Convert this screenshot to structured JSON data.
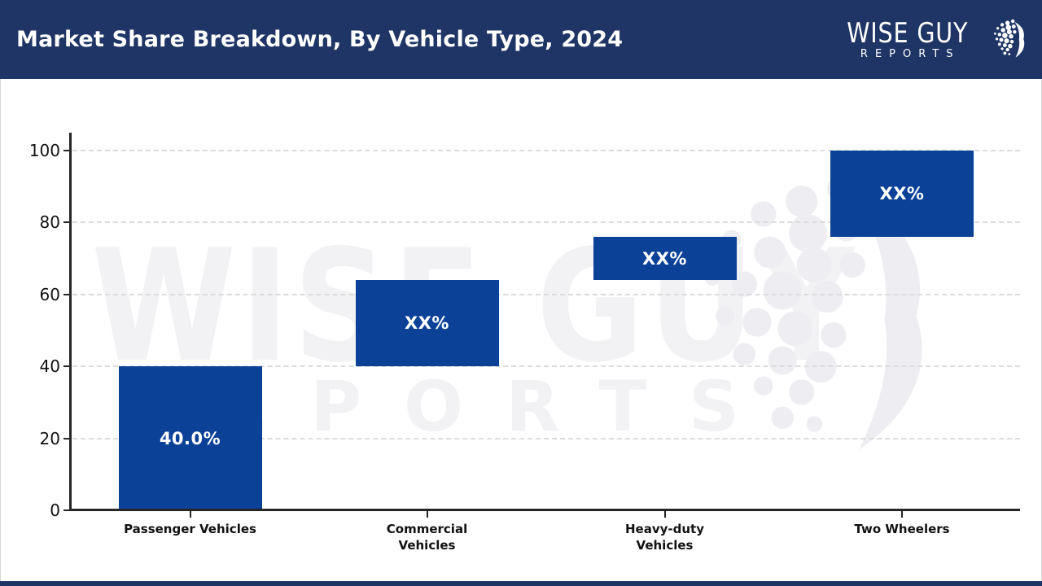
{
  "header": {
    "title": "Market Share Breakdown, By Vehicle Type, 2024",
    "logo": {
      "name": "WISE GUY",
      "sub": "REPORTS"
    }
  },
  "watermark": {
    "name": "WISE GUY",
    "sub": "REPORTS"
  },
  "chart_data": {
    "type": "bar",
    "subtype": "waterfall",
    "title": "Market Share Breakdown, By Vehicle Type, 2024",
    "unit": "percent",
    "categories": [
      "Passenger Vehicles",
      "Commercial Vehicles",
      "Heavy-duty Vehicles",
      "Two Wheelers"
    ],
    "values": [
      40,
      24,
      12,
      24
    ],
    "bars": [
      {
        "category_lines": [
          "Passenger Vehicles"
        ],
        "start": 0,
        "end": 40,
        "label": "40.0%"
      },
      {
        "category_lines": [
          "Commercial",
          "Vehicles"
        ],
        "start": 40,
        "end": 64,
        "label": "XX%"
      },
      {
        "category_lines": [
          "Heavy-duty",
          "Vehicles"
        ],
        "start": 64,
        "end": 76,
        "label": "XX%"
      },
      {
        "category_lines": [
          "Two Wheelers"
        ],
        "start": 76,
        "end": 100,
        "label": "XX%"
      }
    ],
    "yticks": [
      0,
      20,
      40,
      60,
      80,
      100
    ],
    "ylim": [
      0,
      105
    ],
    "grid": "horizontal-dashed",
    "legend": "none",
    "bar_color": "#0b4298",
    "header_color": "#1f3565",
    "gridline_color": "#dcdcdc",
    "axis_color": "#262626"
  }
}
